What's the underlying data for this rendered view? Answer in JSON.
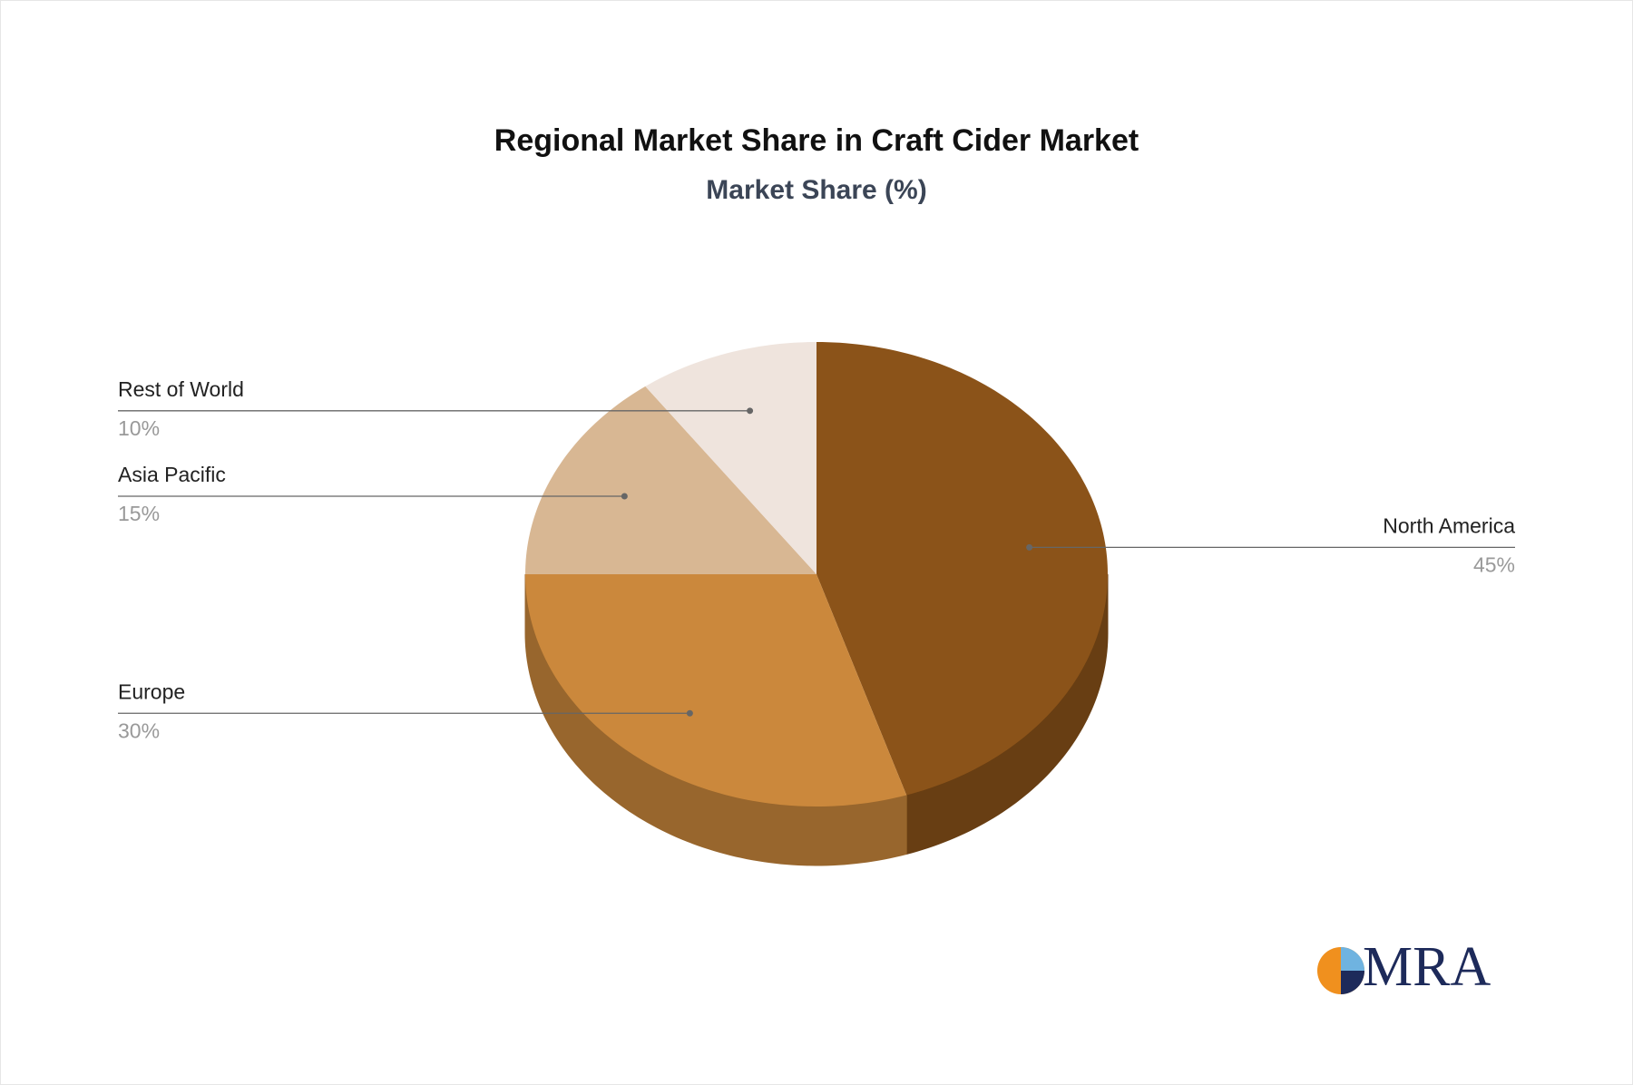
{
  "chart_data": {
    "type": "pie",
    "title": "Regional Market Share in Craft Cider Market",
    "subtitle": "Market Share (%)",
    "categories": [
      "North America",
      "Europe",
      "Asia Pacific",
      "Rest of World"
    ],
    "values": [
      45,
      30,
      15,
      10
    ],
    "value_labels": [
      "45%",
      "30%",
      "15%",
      "10%"
    ],
    "colors": [
      "#8b5319",
      "#cb883c",
      "#d8b793",
      "#efe4dd"
    ]
  },
  "logo": "MRA"
}
